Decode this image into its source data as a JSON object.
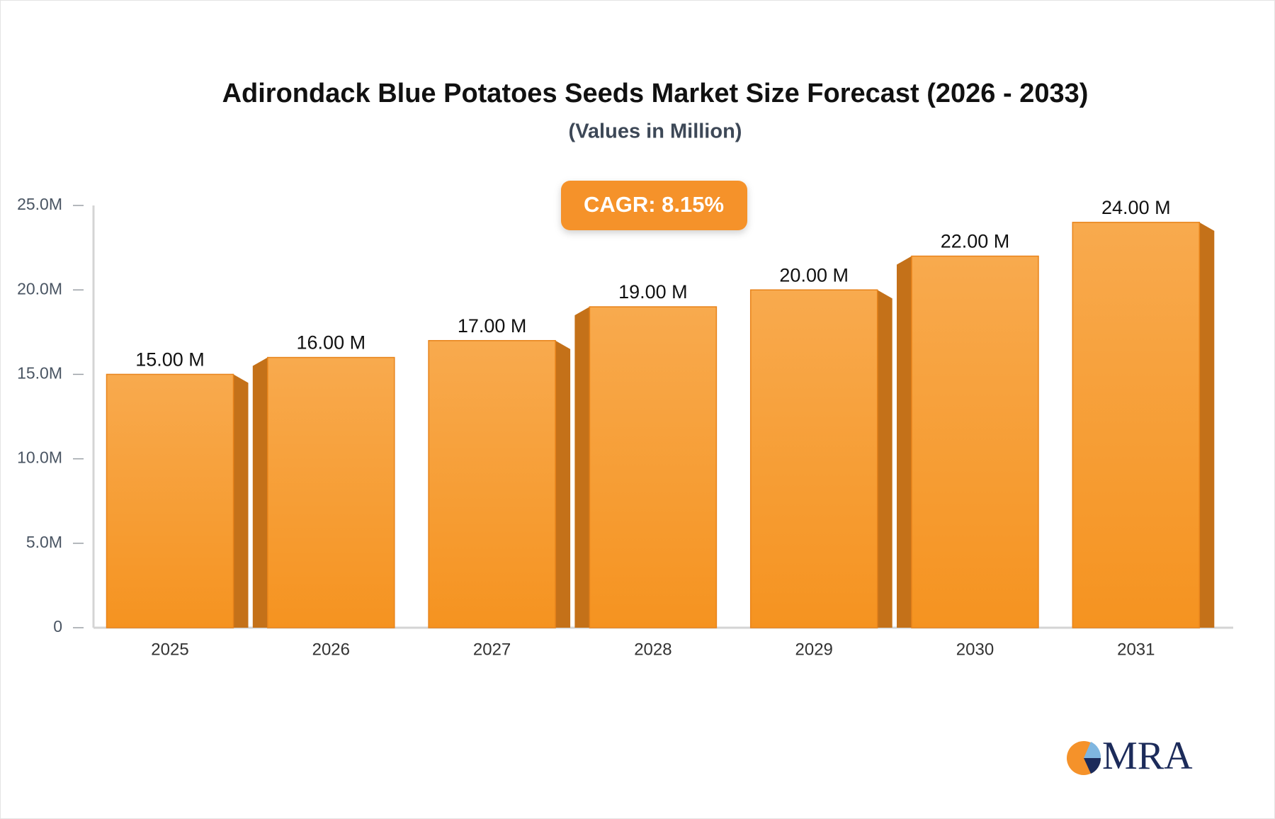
{
  "chart_data": {
    "type": "bar",
    "title": "Adirondack Blue Potatoes Seeds Market Size Forecast (2026 - 2033)",
    "subtitle": "(Values in Million)",
    "annotation": "CAGR: 8.15%",
    "logo": "MRA",
    "categories": [
      "2025",
      "2026",
      "2027",
      "2028",
      "2029",
      "2030",
      "2031"
    ],
    "values": [
      15,
      16,
      17,
      19,
      20,
      22,
      24
    ],
    "value_labels": [
      "15.00 M",
      "16.00 M",
      "17.00 M",
      "19.00 M",
      "20.00 M",
      "22.00 M",
      "24.00 M"
    ],
    "color": "#f59a2e",
    "ylim": [
      0,
      25
    ],
    "yticks": [
      0,
      {
        "value": 5,
        "label": "5.0M"
      },
      {
        "value": 10,
        "label": "10.0M"
      },
      {
        "value": 15,
        "label": "15.0M"
      },
      {
        "value": 20,
        "label": "20.0M"
      },
      {
        "value": 25,
        "label": "25.0M"
      }
    ],
    "grid": false
  }
}
